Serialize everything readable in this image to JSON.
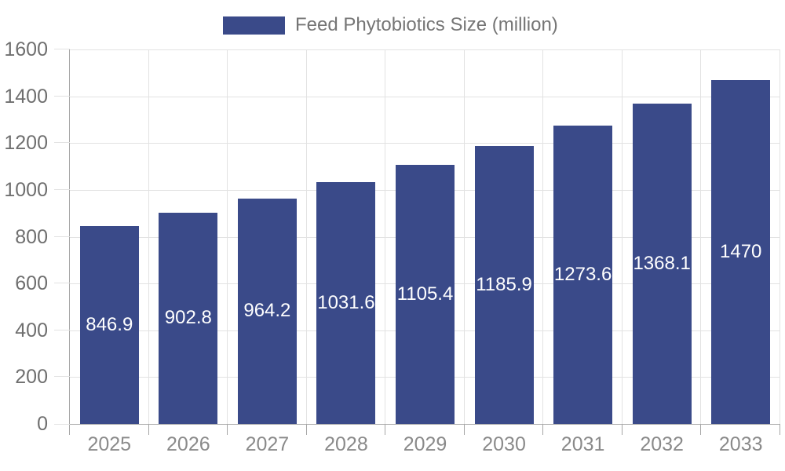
{
  "chart_data": {
    "type": "bar",
    "legend": "Feed Phytobiotics Size (million)",
    "legend_position": "top",
    "categories": [
      "2025",
      "2026",
      "2027",
      "2028",
      "2029",
      "2030",
      "2031",
      "2032",
      "2033"
    ],
    "values": [
      846.9,
      902.8,
      964.2,
      1031.6,
      1105.4,
      1185.9,
      1273.6,
      1368.1,
      1470
    ],
    "value_labels": [
      "846.9",
      "902.8",
      "964.2",
      "1031.6",
      "1105.4",
      "1185.9",
      "1273.6",
      "1368.1",
      "1470"
    ],
    "xlabel": "",
    "ylabel": "",
    "ylim": [
      0,
      1600
    ],
    "y_ticks": [
      0,
      200,
      400,
      600,
      800,
      1000,
      1200,
      1400,
      1600
    ],
    "grid": true,
    "colors": {
      "bar": "#3a4a89",
      "grid": "#e2e2e2",
      "axis": "#a6a6a6",
      "y_label": "#6f6f6f",
      "x_label": "#8a8a8a",
      "value_label": "#ffffff",
      "legend_text": "#757575"
    }
  }
}
